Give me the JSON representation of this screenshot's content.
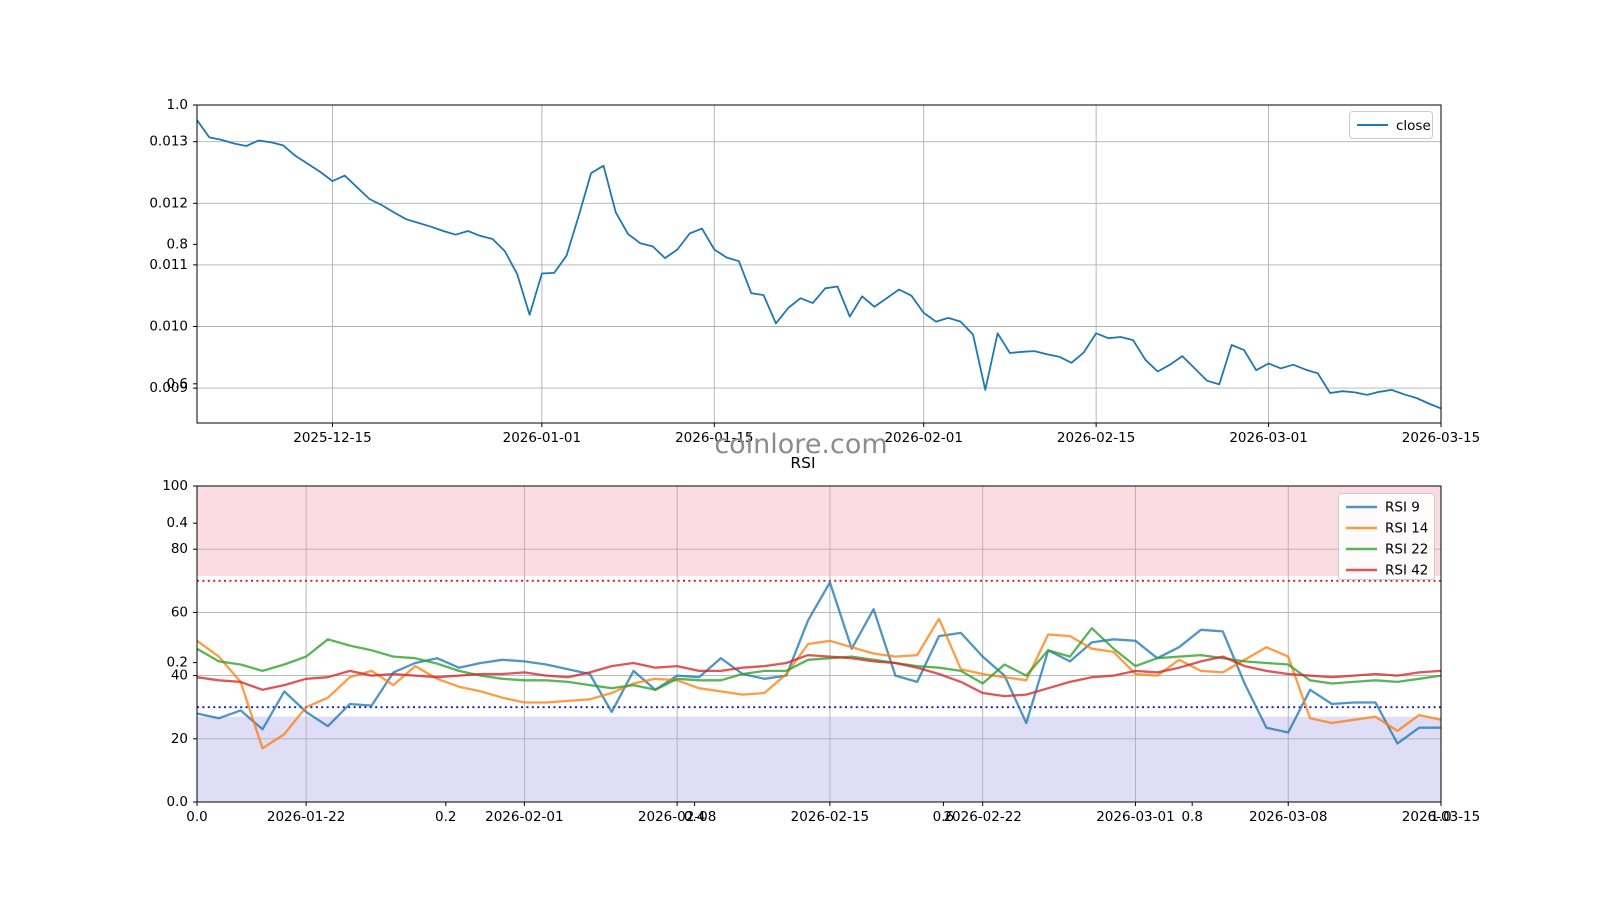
{
  "watermark": {
    "text": "coinlore.com",
    "color": "#8c8c8c"
  },
  "hidden_axes": {
    "y_tick_labels": [
      "1.0",
      "0.8",
      "0.6",
      "0.4",
      "0.2",
      "0.0"
    ],
    "x_tick_labels": [
      "0.0",
      "0.2",
      "0.4",
      "0.6",
      "0.8",
      "1.0"
    ]
  },
  "chart_data": [
    {
      "type": "line",
      "name": "price-chart",
      "title": "",
      "legend_position": "upper right",
      "grid": true,
      "grid_color": "#b0b0b0",
      "x_range": [
        "2025-12-04",
        "2026-03-15"
      ],
      "interval": "daily",
      "ylim": [
        0.00843,
        0.0136
      ],
      "y_tick_labels": [
        "0.013",
        "0.012",
        "0.011",
        "0.010",
        "0.009"
      ],
      "y_tick_values": [
        0.013,
        0.012,
        0.011,
        0.01,
        0.009
      ],
      "x_tick_labels": [
        "2025-12-15",
        "2026-01-01",
        "2026-01-15",
        "2026-02-01",
        "2026-02-15",
        "2026-03-01",
        "2026-03-15"
      ],
      "x_tick_day_offsets": [
        11,
        28,
        42,
        59,
        73,
        87,
        101
      ],
      "series": [
        {
          "name": "close",
          "color": "#1f77b4",
          "x_start": "2025-12-04",
          "x_end": "2026-03-15",
          "values": [
            0.01335,
            0.01307,
            0.01303,
            0.01297,
            0.01293,
            0.01302,
            0.01299,
            0.01294,
            0.01277,
            0.01264,
            0.01251,
            0.01236,
            0.01245,
            0.01226,
            0.01207,
            0.01197,
            0.01185,
            0.01174,
            0.01168,
            0.01162,
            0.01155,
            0.01149,
            0.01155,
            0.01147,
            0.01142,
            0.01122,
            0.01085,
            0.01019,
            0.01086,
            0.01087,
            0.01115,
            0.0118,
            0.01249,
            0.01261,
            0.01185,
            0.0115,
            0.01135,
            0.0113,
            0.01111,
            0.01125,
            0.01151,
            0.01159,
            0.01125,
            0.01112,
            0.01106,
            0.01054,
            0.01051,
            0.01005,
            0.0103,
            0.01046,
            0.01038,
            0.01062,
            0.01065,
            0.01016,
            0.01049,
            0.01032,
            0.01046,
            0.0106,
            0.0105,
            0.01022,
            0.01008,
            0.01014,
            0.01008,
            0.00987,
            0.00897,
            0.00989,
            0.00957,
            0.00959,
            0.0096,
            0.00955,
            0.00951,
            0.00941,
            0.00958,
            0.00989,
            0.00981,
            0.00983,
            0.00978,
            0.00946,
            0.00927,
            0.00938,
            0.00952,
            0.00932,
            0.00912,
            0.00906,
            0.0097,
            0.00962,
            0.00929,
            0.0094,
            0.00932,
            0.00938,
            0.0093,
            0.00924,
            0.00892,
            0.00895,
            0.00893,
            0.00889,
            0.00894,
            0.00897,
            0.0089,
            0.00884,
            0.00875,
            0.00867
          ]
        }
      ]
    },
    {
      "type": "line",
      "name": "rsi-chart",
      "title": "RSI",
      "legend_position": "upper right",
      "grid": true,
      "grid_color": "#b0b0b0",
      "x_range": [
        "2026-01-17",
        "2026-03-15"
      ],
      "interval": "daily",
      "ylim": [
        0,
        100
      ],
      "y_tick_labels": [
        "100",
        "80",
        "60",
        "40",
        "20"
      ],
      "y_tick_values": [
        100,
        80,
        60,
        40,
        20
      ],
      "x_tick_labels": [
        "2026-01-22",
        "2026-02-01",
        "2026-02-08",
        "2026-02-15",
        "2026-02-22",
        "2026-03-01",
        "2026-03-08",
        "2026-03-15"
      ],
      "x_tick_day_offsets": [
        5,
        15,
        22,
        29,
        36,
        43,
        50,
        57
      ],
      "overbought_band": [
        71.5,
        100
      ],
      "oversold_band": [
        0,
        27
      ],
      "overbought_line": 70,
      "oversold_line": 30,
      "band_colors": {
        "overbought": "#fbdce2",
        "oversold": "#dfdef6"
      },
      "threshold_colors": {
        "overbought": "#e0101c",
        "oversold": "#1414cc"
      },
      "series": [
        {
          "name": "RSI 9",
          "color": "#1f77b4",
          "values": [
            28,
            26.5,
            29,
            23,
            35,
            28.5,
            24,
            31,
            30.5,
            41,
            44,
            45.5,
            42.5,
            44,
            45,
            44.5,
            43.5,
            42,
            40.5,
            28.5,
            41.5,
            35.5,
            40,
            39.5,
            45.5,
            40.5,
            39,
            40,
            57.5,
            69.5,
            48.5,
            61,
            40,
            38,
            52.5,
            53.5,
            46,
            40,
            25,
            48,
            44.5,
            50.5,
            51.5,
            51,
            45.5,
            49,
            54.5,
            54,
            37.5,
            23.5,
            22,
            35.5,
            31,
            31.5,
            31.5,
            18.5,
            23.5,
            23.5
          ]
        },
        {
          "name": "RSI 14",
          "color": "#ff7f0e",
          "values": [
            51,
            46,
            38,
            17,
            21.5,
            30,
            33,
            39.5,
            41.5,
            37,
            43,
            39,
            36.5,
            35,
            33,
            31.5,
            31.5,
            32,
            32.5,
            34.5,
            37.5,
            39,
            38.5,
            36,
            35,
            34,
            34.5,
            40.5,
            50,
            51,
            49,
            47,
            46,
            46.5,
            58,
            42,
            40.5,
            39.5,
            38.5,
            53,
            52.5,
            48.5,
            47.5,
            40.5,
            40,
            45,
            41.5,
            41,
            45,
            49,
            46,
            26.5,
            25,
            26,
            27,
            22.5,
            27.5,
            26
          ]
        },
        {
          "name": "RSI 22",
          "color": "#2ca02c",
          "values": [
            48.5,
            44.5,
            43.5,
            41.5,
            43.5,
            46,
            51.5,
            49.5,
            48,
            46,
            45.5,
            43.8,
            41.5,
            40,
            39,
            38.5,
            38.5,
            38,
            37,
            36,
            37,
            35.5,
            39,
            38.5,
            38.5,
            40.5,
            41.5,
            41.5,
            45,
            45.5,
            46,
            45,
            44,
            43,
            42.5,
            41.5,
            37.5,
            43.5,
            40,
            48,
            46,
            55,
            48.5,
            43,
            45.5,
            46,
            46.5,
            45.5,
            44.5,
            44,
            43.5,
            38.5,
            37.5,
            38,
            38.5,
            38,
            39,
            40
          ]
        },
        {
          "name": "RSI 42",
          "color": "#d62728",
          "values": [
            39.5,
            38.5,
            38,
            35.5,
            37,
            39,
            39.5,
            41.5,
            40,
            40.5,
            40,
            39.5,
            40,
            40.5,
            40.5,
            41,
            40,
            39.5,
            41,
            43,
            44,
            42.5,
            43,
            41.5,
            41.5,
            42.5,
            43,
            44,
            46.5,
            46,
            45.5,
            44.5,
            44,
            42.5,
            40.5,
            38,
            34.5,
            33.5,
            34,
            36,
            38,
            39.5,
            40,
            41.5,
            41,
            42.5,
            44.5,
            46,
            43,
            41.5,
            40.5,
            40,
            39.5,
            40,
            40.5,
            40,
            41,
            41.5
          ]
        }
      ]
    }
  ]
}
